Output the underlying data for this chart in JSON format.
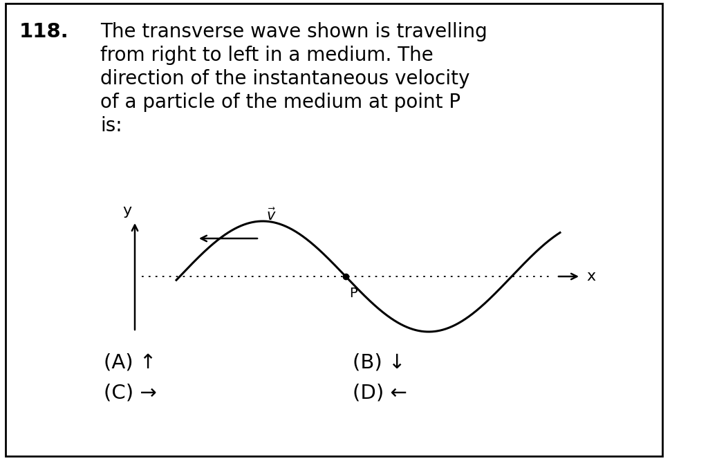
{
  "question_number": "118.",
  "question_text_line1": "The transverse wave shown is travelling",
  "question_text_line2": "from right to left in a medium. The",
  "question_text_line3": "direction of the instantaneous velocity",
  "question_text_line4": "of a particle of the medium at point P",
  "question_text_line5": "is:",
  "background_color": "#ffffff",
  "text_color": "#000000",
  "wave_color": "#000000",
  "border_color": "#000000",
  "fig_width": 10.24,
  "fig_height": 6.67,
  "dpi": 100
}
